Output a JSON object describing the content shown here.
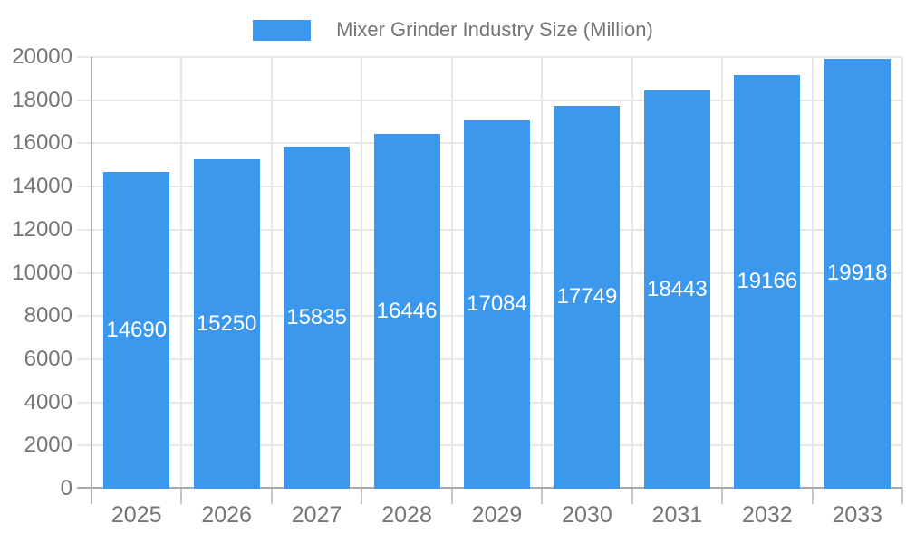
{
  "legend": {
    "label": "Mixer Grinder Industry Size (Million)"
  },
  "chart_data": {
    "type": "bar",
    "title": "Mixer Grinder Industry Size (Million)",
    "categories": [
      "2025",
      "2026",
      "2027",
      "2028",
      "2029",
      "2030",
      "2031",
      "2032",
      "2033"
    ],
    "series": [
      {
        "name": "Mixer Grinder Industry Size (Million)",
        "values": [
          14690,
          15250,
          15835,
          16446,
          17084,
          17749,
          18443,
          19166,
          19918
        ]
      }
    ],
    "xlabel": "",
    "ylabel": "",
    "ylim": [
      0,
      20000
    ],
    "yticks": [
      0,
      2000,
      4000,
      6000,
      8000,
      10000,
      12000,
      14000,
      16000,
      18000,
      20000
    ],
    "grid": true,
    "legend_position": "top-center",
    "value_labels": "inside-center",
    "colors": {
      "bar": "#3B98EC",
      "value_label": "#FFFFFF",
      "axis_label": "#757575",
      "legend_label": "#757575",
      "gridline": "#E7E7E7",
      "axis_line": "#A9A9A9",
      "tick": "#C6C6C6",
      "background": "#FFFFFF"
    }
  }
}
